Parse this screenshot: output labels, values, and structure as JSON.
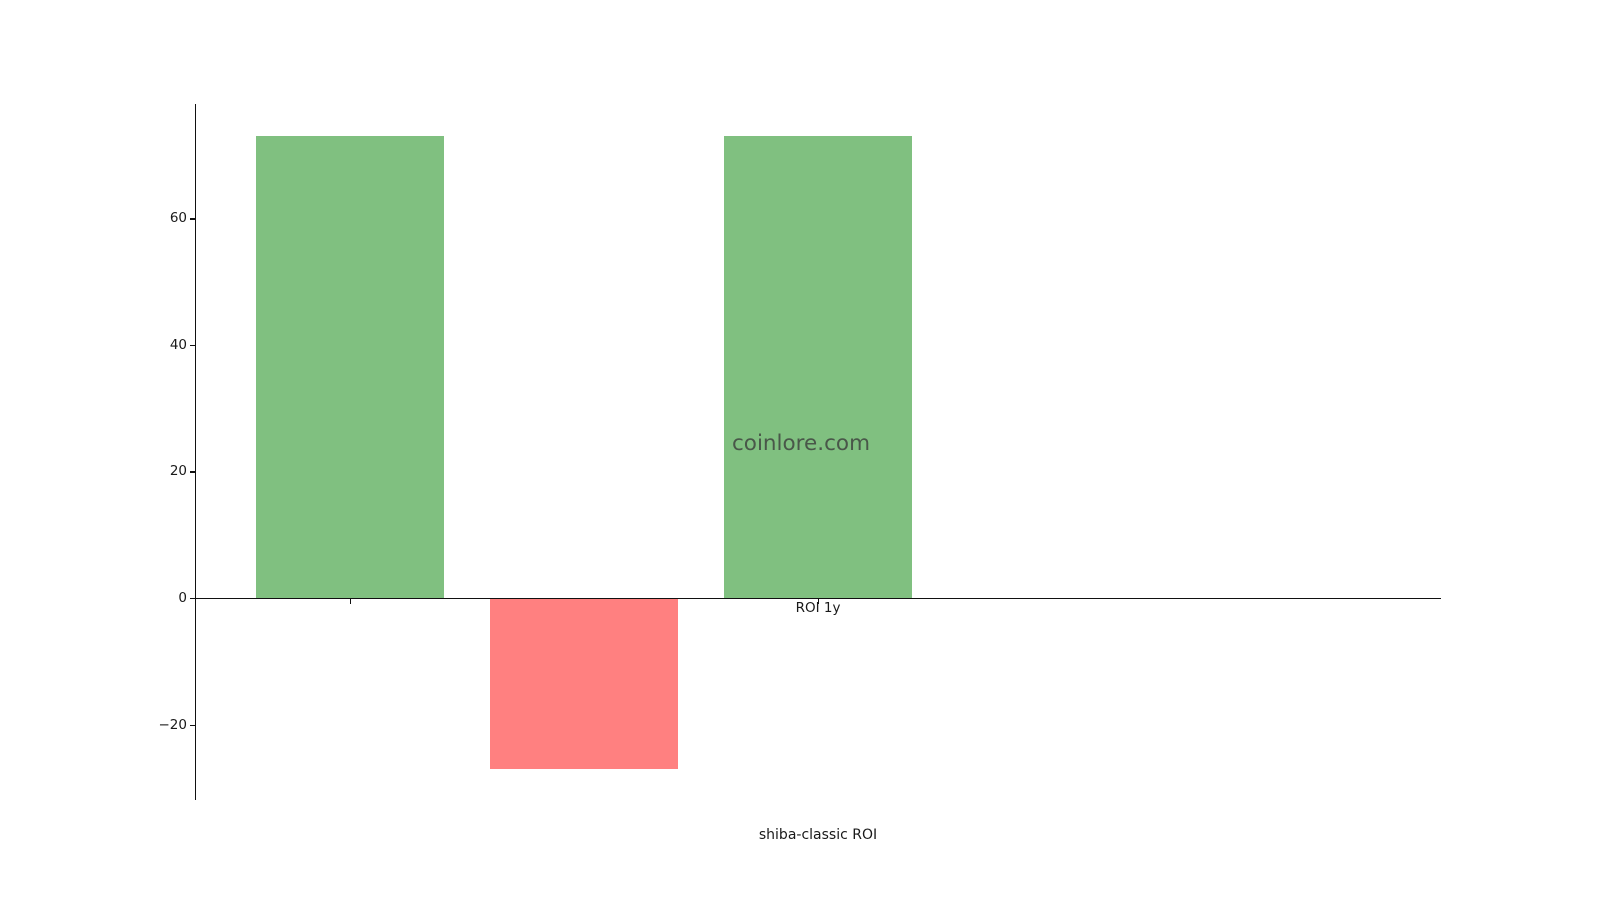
{
  "page": {
    "background": "#ffffff"
  },
  "chart_data": {
    "type": "bar",
    "title": "",
    "xlabel": "shiba-classic ROI",
    "ylabel": "",
    "categories": [
      "",
      "",
      "ROI 1y"
    ],
    "values": [
      73,
      -27,
      73
    ],
    "bar_colors": [
      "#80c080",
      "#ff8080",
      "#80c080"
    ],
    "positive_color": "#80c080",
    "negative_color": "#ff8080",
    "axis_color": "#111111",
    "ylim": [
      -32,
      78
    ],
    "y_ticks": [
      {
        "value": 60,
        "label": "60"
      },
      {
        "value": 40,
        "label": "40"
      },
      {
        "value": 20,
        "label": "20"
      },
      {
        "value": 0,
        "label": "0"
      },
      {
        "value": -20,
        "label": "−20"
      }
    ],
    "grid": false,
    "legend_position": "none",
    "watermark": "coinlore.com"
  }
}
